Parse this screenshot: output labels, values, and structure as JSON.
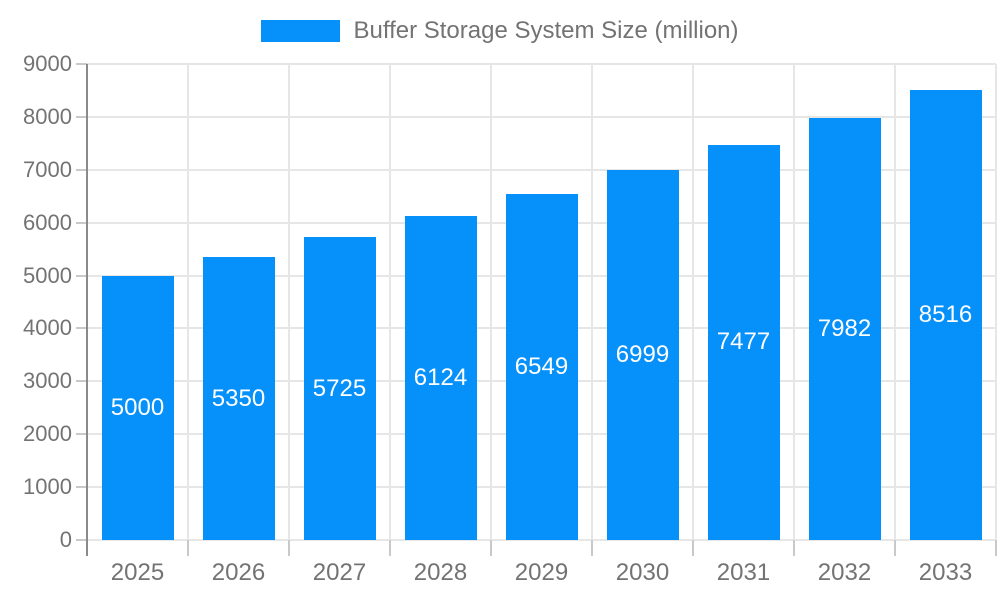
{
  "chart_data": {
    "type": "bar",
    "title": "Buffer Storage System Size (million)",
    "categories": [
      "2025",
      "2026",
      "2027",
      "2028",
      "2029",
      "2030",
      "2031",
      "2032",
      "2033"
    ],
    "values": [
      5000,
      5350,
      5725,
      6124,
      6549,
      6999,
      7477,
      7982,
      8516
    ],
    "bar_value_labels": [
      "5000",
      "5350",
      "5725",
      "6124",
      "6549",
      "6999",
      "7477",
      "7982",
      "8516"
    ],
    "xlabel": "",
    "ylabel": "",
    "ylim": [
      0,
      9000
    ],
    "ytick_step": 1000,
    "yticks": [
      0,
      1000,
      2000,
      3000,
      4000,
      5000,
      6000,
      7000,
      8000,
      9000
    ],
    "ytick_labels": [
      "0",
      "1000",
      "2000",
      "3000",
      "4000",
      "5000",
      "6000",
      "7000",
      "8000",
      "9000"
    ],
    "grid": true,
    "legend_position": "top",
    "colors": {
      "bar": "#0690FA",
      "bar_label_text": "#FFFFFF",
      "axis_text": "#737373",
      "grid_line": "#E6E6E6",
      "axis_line": "#8A8A8A",
      "tick_mark": "#C9C9C9"
    }
  },
  "legend": {
    "label": "Buffer Storage System Size (million)"
  }
}
